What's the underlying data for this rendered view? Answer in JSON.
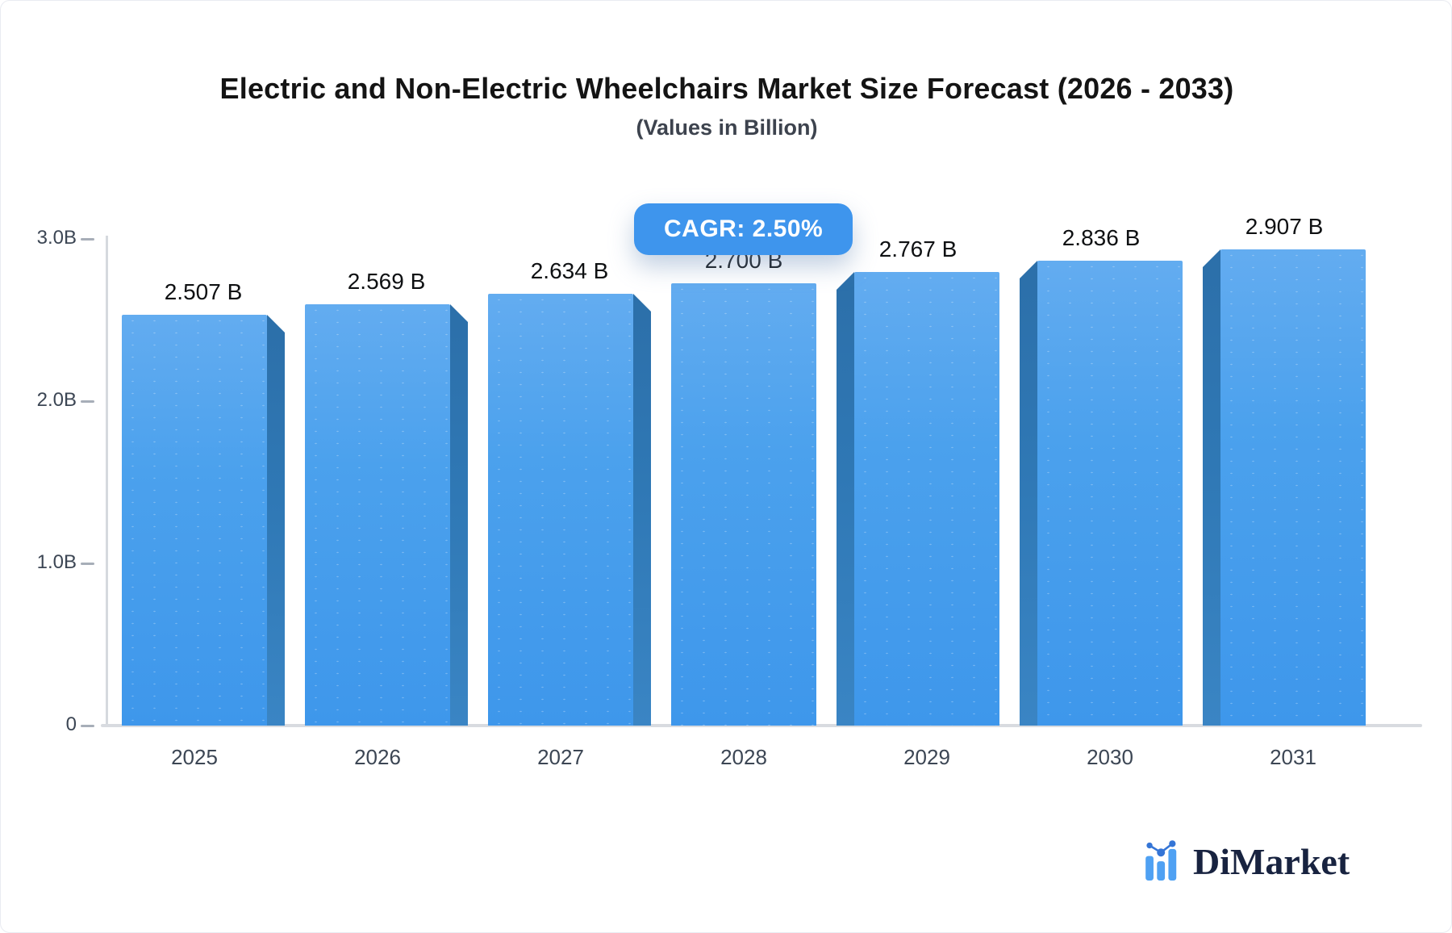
{
  "header": {
    "title": "Electric and Non-Electric Wheelchairs Market Size Forecast (2026 - 2033)",
    "subtitle": "(Values in Billion)"
  },
  "annotation": {
    "cagr_label": "CAGR: 2.50%"
  },
  "brand": {
    "name": "DiMarket",
    "icon": "bar-chart-logo-icon",
    "icon_bar_color": "#4fa1f3",
    "icon_dot_color": "#3575d6",
    "name_color": "#182340"
  },
  "chart_data": {
    "type": "bar",
    "title": "Electric and Non-Electric Wheelchairs Market Size Forecast (2026 - 2033)",
    "subtitle": "(Values in Billion)",
    "categories": [
      "2025",
      "2026",
      "2027",
      "2028",
      "2029",
      "2030",
      "2031"
    ],
    "values": [
      2.507,
      2.569,
      2.634,
      2.7,
      2.767,
      2.836,
      2.907
    ],
    "value_labels": [
      "2.507 B",
      "2.569 B",
      "2.634 B",
      "2.700 B",
      "2.767 B",
      "2.836 B",
      "2.907 B"
    ],
    "annotation": "CAGR: 2.50%",
    "xlabel": "",
    "ylabel": "",
    "ylim": [
      0,
      3.0
    ],
    "yticks": [
      {
        "value": 0,
        "label": "0"
      },
      {
        "value": 1,
        "label": "1.0B"
      },
      {
        "value": 2,
        "label": "2.0B"
      },
      {
        "value": 3,
        "label": "3.0B"
      }
    ],
    "grid": false,
    "legend": false,
    "bar_color_top": "#63acf0",
    "bar_color_bottom": "#3e97eb",
    "bar_side_color": "#2f78b5",
    "accent_color": "#3e95ed",
    "axis_color": "#d5d9de",
    "label_color": "#3c4654"
  }
}
